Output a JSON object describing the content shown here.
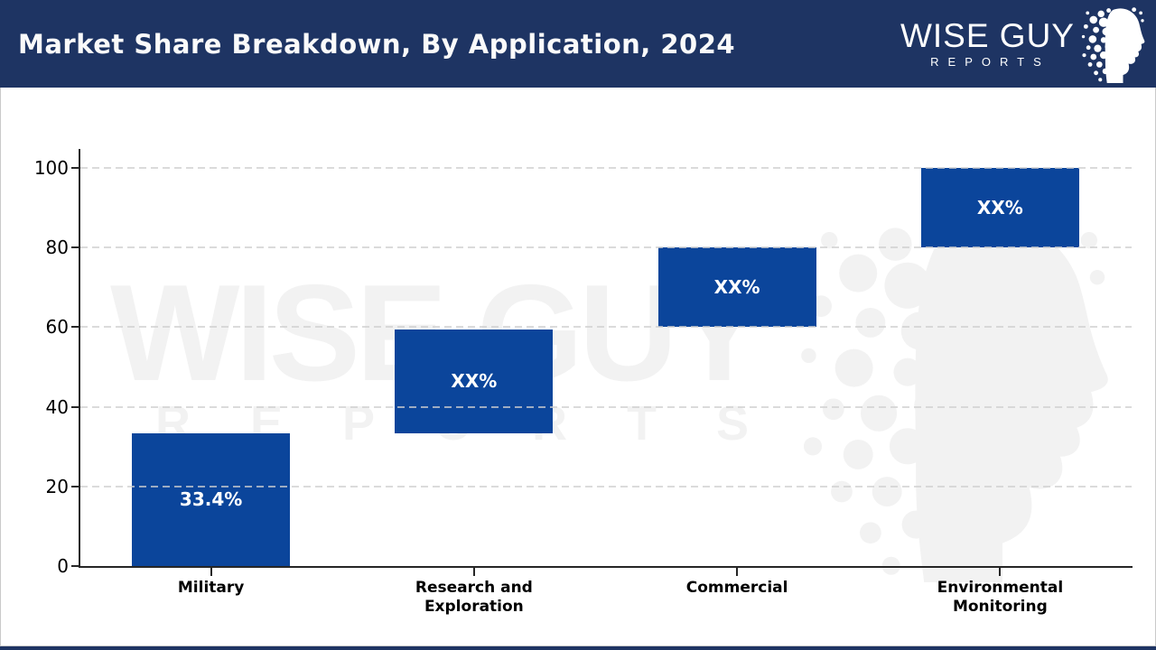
{
  "header": {
    "title": "Market Share Breakdown, By Application, 2024",
    "logo": {
      "name": "WISE GUY",
      "sub": "REPORTS"
    }
  },
  "watermark": {
    "name": "WISE GUY",
    "sub": "REPORTS"
  },
  "chart_data": {
    "type": "bar",
    "variant": "waterfall",
    "title": "Market Share Breakdown, By Application, 2024",
    "categories": [
      "Military",
      "Research and Exploration",
      "Commercial",
      "Environmental Monitoring"
    ],
    "category_lines": [
      [
        "Military"
      ],
      [
        "Research and",
        "Exploration"
      ],
      [
        "Commercial"
      ],
      [
        "Environmental",
        "Monitoring"
      ]
    ],
    "bars": [
      {
        "category": "Military",
        "start": 0,
        "end": 33.4,
        "label": "33.4%"
      },
      {
        "category": "Research and Exploration",
        "start": 33.4,
        "end": 59.5,
        "label": "XX%"
      },
      {
        "category": "Commercial",
        "start": 60,
        "end": 80,
        "label": "XX%"
      },
      {
        "category": "Environmental Monitoring",
        "start": 80,
        "end": 100,
        "label": "XX%"
      }
    ],
    "xlabel": "",
    "ylabel": "",
    "ylim": [
      0,
      100
    ],
    "yticks": [
      0,
      20,
      40,
      60,
      80,
      100
    ],
    "grid": "horizontal-dashed",
    "legend": "none",
    "colors": {
      "bar": "#0b459b",
      "bar_label": "#ffffff",
      "axis": "#262626",
      "gridline": "#cfcfcf",
      "header_bg": "#1e3463",
      "title_text": "#fafafa",
      "watermark": "#f2f2f2"
    }
  }
}
